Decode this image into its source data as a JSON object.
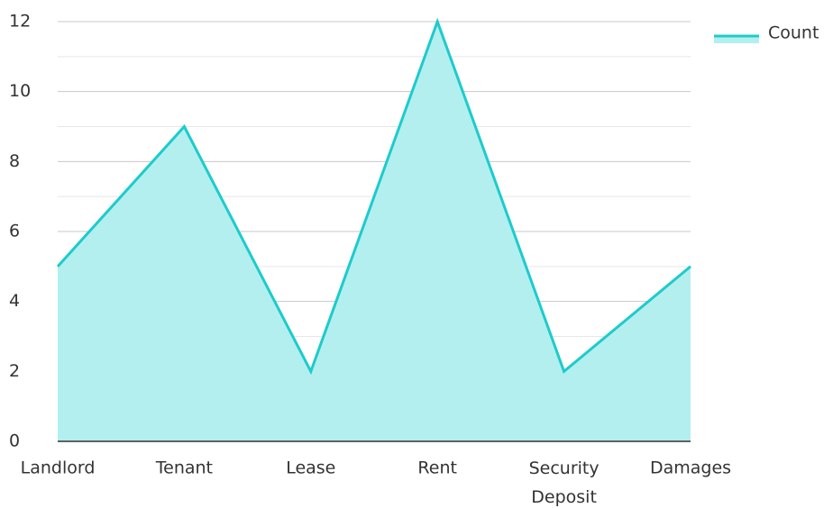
{
  "chart_data": {
    "type": "area",
    "categories": [
      "Landlord",
      "Tenant",
      "Lease",
      "Rent",
      "Security Deposit",
      "Damages"
    ],
    "series": [
      {
        "name": "Count",
        "color": "#1ecbcb",
        "fill": "#b3efef",
        "values": [
          5,
          9,
          2,
          12,
          2,
          5
        ]
      }
    ],
    "ylim": [
      0,
      12
    ],
    "yticks": [
      0,
      2,
      4,
      6,
      8,
      10,
      12
    ],
    "minor_yticks": [
      1,
      3,
      5,
      7,
      9,
      11
    ],
    "grid": true,
    "legend": "top-right"
  }
}
